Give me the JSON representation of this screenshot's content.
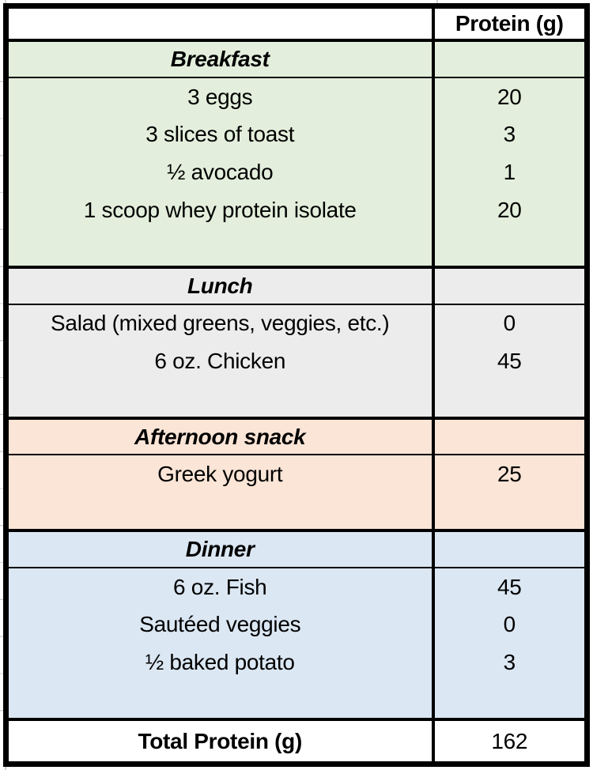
{
  "columns": {
    "item_header": "",
    "protein_header": "Protein (g)"
  },
  "colors": {
    "header_bg": "#ffffff",
    "breakfast_bg": "#e3efdc",
    "lunch_bg": "#ececec",
    "snack_bg": "#fbe5d6",
    "dinner_bg": "#dbe7f3",
    "total_bg": "#ffffff",
    "border": "#000000",
    "gridline_stub": "#cfd3cf"
  },
  "rows": [
    {
      "type": "column-header",
      "label": "",
      "value": "Protein (g)",
      "bg": "header_bg",
      "divider_below": "thick"
    },
    {
      "type": "section-header",
      "label": "Breakfast",
      "value": "",
      "bg": "breakfast_bg",
      "divider_below": "thin"
    },
    {
      "type": "item",
      "label": "3 eggs",
      "value": "20",
      "bg": "breakfast_bg",
      "divider_below": "none"
    },
    {
      "type": "item",
      "label": "3 slices of toast",
      "value": "3",
      "bg": "breakfast_bg",
      "divider_below": "none"
    },
    {
      "type": "item",
      "label": "½ avocado",
      "value": "1",
      "bg": "breakfast_bg",
      "divider_below": "none"
    },
    {
      "type": "item",
      "label": "1 scoop whey protein isolate",
      "value": "20",
      "bg": "breakfast_bg",
      "divider_below": "none"
    },
    {
      "type": "spacer",
      "label": "",
      "value": "",
      "bg": "breakfast_bg",
      "divider_below": "thick"
    },
    {
      "type": "section-header",
      "label": "Lunch",
      "value": "",
      "bg": "lunch_bg",
      "divider_below": "thin"
    },
    {
      "type": "item",
      "label": "Salad (mixed greens, veggies, etc.)",
      "value": "0",
      "bg": "lunch_bg",
      "divider_below": "none"
    },
    {
      "type": "item",
      "label": "6 oz. Chicken",
      "value": "45",
      "bg": "lunch_bg",
      "divider_below": "none"
    },
    {
      "type": "spacer",
      "label": "",
      "value": "",
      "bg": "lunch_bg",
      "divider_below": "thick"
    },
    {
      "type": "section-header",
      "label": "Afternoon snack",
      "value": "",
      "bg": "snack_bg",
      "divider_below": "thin"
    },
    {
      "type": "item",
      "label": "Greek yogurt",
      "value": "25",
      "bg": "snack_bg",
      "divider_below": "none"
    },
    {
      "type": "spacer",
      "label": "",
      "value": "",
      "bg": "snack_bg",
      "divider_below": "thick"
    },
    {
      "type": "section-header",
      "label": "Dinner",
      "value": "",
      "bg": "dinner_bg",
      "divider_below": "thin"
    },
    {
      "type": "item",
      "label": "6 oz. Fish",
      "value": "45",
      "bg": "dinner_bg",
      "divider_below": "none"
    },
    {
      "type": "item",
      "label": "Sautéed veggies",
      "value": "0",
      "bg": "dinner_bg",
      "divider_below": "none"
    },
    {
      "type": "item",
      "label": "½ baked potato",
      "value": "3",
      "bg": "dinner_bg",
      "divider_below": "none"
    },
    {
      "type": "spacer",
      "label": "",
      "value": "",
      "bg": "dinner_bg",
      "divider_below": "thick"
    },
    {
      "type": "total",
      "label": "Total Protein (g)",
      "value": "162",
      "bg": "total_bg",
      "divider_below": "none"
    }
  ],
  "totals": {
    "label": "Total Protein (g)",
    "value": "162"
  }
}
